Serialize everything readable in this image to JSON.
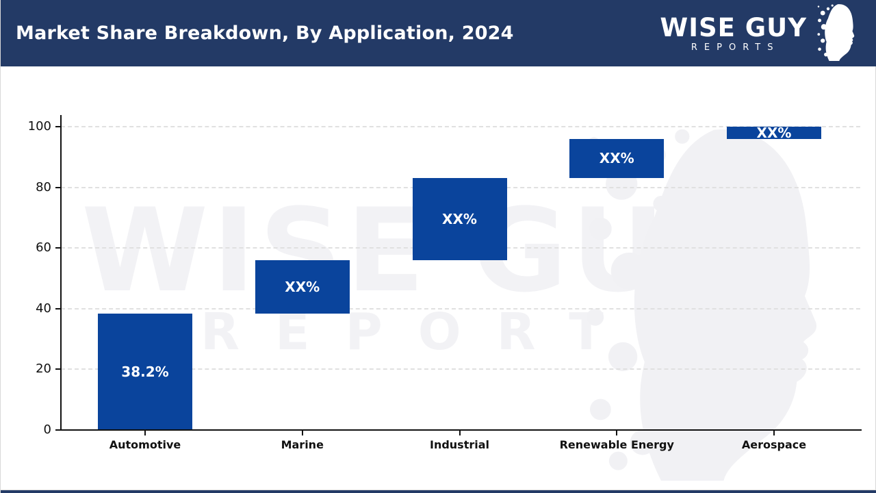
{
  "header": {
    "title": "Market Share Breakdown, By Application, 2024",
    "logo": {
      "line1": "WISE GUY",
      "line2": "REPORTS"
    }
  },
  "watermark": {
    "line1": "WISE GUY",
    "line2": "REPORTS"
  },
  "chart_data": {
    "type": "bar",
    "subtype": "waterfall",
    "title": "Market Share Breakdown, By Application, 2024",
    "categories": [
      "Automotive",
      "Marine",
      "Industrial",
      "Renewable Energy",
      "Aerospace"
    ],
    "segments": [
      {
        "category": "Automotive",
        "start": 0,
        "end": 38.2,
        "label": "38.2%"
      },
      {
        "category": "Marine",
        "start": 38.2,
        "end": 56,
        "label": "XX%"
      },
      {
        "category": "Industrial",
        "start": 56,
        "end": 83,
        "label": "XX%"
      },
      {
        "category": "Renewable Energy",
        "start": 83,
        "end": 96,
        "label": "XX%"
      },
      {
        "category": "Aerospace",
        "start": 96,
        "end": 100,
        "label": "XX%"
      }
    ],
    "xlabel": "",
    "ylabel": "",
    "ylim": [
      0,
      104
    ],
    "yticks": [
      0,
      20,
      40,
      60,
      80,
      100
    ],
    "grid": "horizontal-dashed",
    "legend": "none",
    "bar_color": "#0a449c",
    "bar_label_color": "#ffffff",
    "header_color": "#233a66",
    "watermark_color": "#f2f2f5"
  }
}
